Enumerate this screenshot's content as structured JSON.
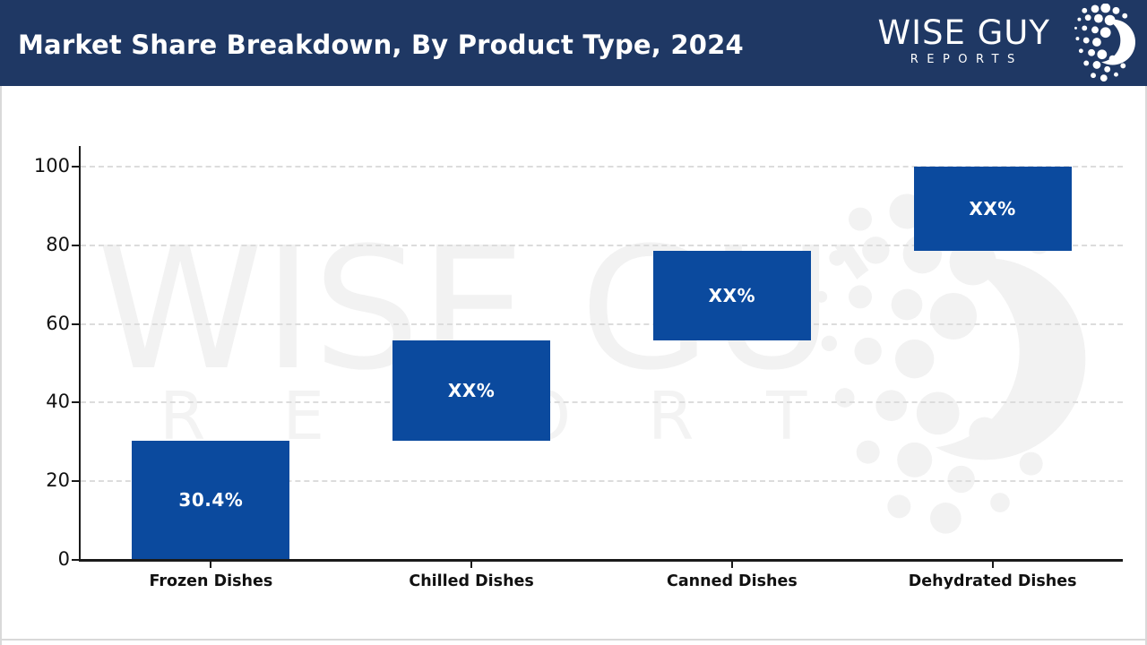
{
  "header": {
    "title": "Market Share Breakdown, By Product Type, 2024",
    "logo": {
      "wordmark": "WISE GUY",
      "subtext": "REPORTS"
    }
  },
  "watermark": {
    "wordmark": "WISE GUY",
    "subtext": "REPORTS"
  },
  "chart_data": {
    "type": "bar",
    "subtype": "waterfall",
    "title": "Market Share Breakdown, By Product Type, 2024",
    "categories": [
      "Frozen Dishes",
      "Chilled Dishes",
      "Canned Dishes",
      "Dehydrated Dishes"
    ],
    "segments": [
      {
        "category": "Frozen Dishes",
        "start": 0,
        "end": 30.4,
        "label": "30.4%"
      },
      {
        "category": "Chilled Dishes",
        "start": 30.4,
        "end": 55.8,
        "label": "XX%"
      },
      {
        "category": "Canned Dishes",
        "start": 55.8,
        "end": 78.5,
        "label": "XX%"
      },
      {
        "category": "Dehydrated Dishes",
        "start": 78.5,
        "end": 100,
        "label": "XX%"
      }
    ],
    "ylim": [
      0,
      100
    ],
    "yticks": [
      0,
      20,
      40,
      60,
      80,
      100
    ],
    "xlabel": "",
    "ylabel": "",
    "grid": "horizontal-dashed",
    "legend": "none",
    "bar_color": "#0B4A9E",
    "bar_label_color": "#FFFFFF"
  },
  "colors": {
    "header_bg": "#1F3864",
    "bar": "#0B4A9E",
    "grid": "#DCDCDC",
    "axis": "#1A1A1A",
    "watermark": "#F2F2F2",
    "frame": "#D9D9D9",
    "text": "#111111"
  }
}
